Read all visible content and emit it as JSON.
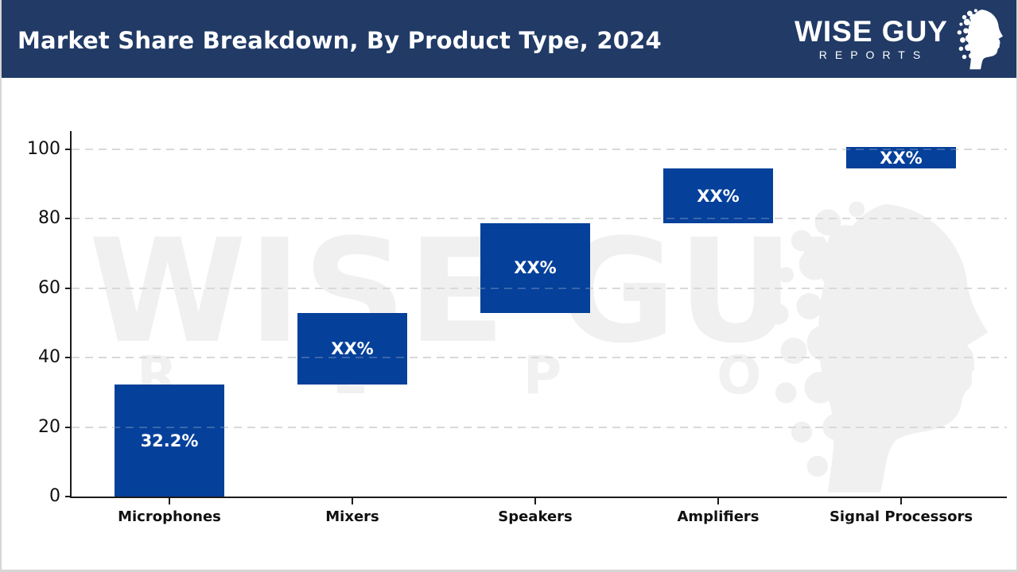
{
  "header": {
    "title": "Market Share Breakdown, By Product Type, 2024",
    "bg_color": "#213a66",
    "logo": {
      "line1": "WISE GUY",
      "line2": "REPORTS"
    }
  },
  "watermark": {
    "line1": "WISE GUY",
    "line2": "R E P O R T S"
  },
  "chart_data": {
    "type": "bar",
    "subtype": "waterfall",
    "title": "Market Share Breakdown, By Product Type, 2024",
    "xlabel": "",
    "ylabel": "",
    "categories": [
      "Microphones",
      "Mixers",
      "Speakers",
      "Amplifiers",
      "Signal Processors"
    ],
    "segments": [
      {
        "category": "Microphones",
        "start": 0,
        "end": 32.2,
        "label": "32.2%"
      },
      {
        "category": "Mixers",
        "start": 32.2,
        "end": 52.9,
        "label": "XX%"
      },
      {
        "category": "Speakers",
        "start": 52.9,
        "end": 78.6,
        "label": "XX%"
      },
      {
        "category": "Amplifiers",
        "start": 78.6,
        "end": 94.3,
        "label": "XX%"
      },
      {
        "category": "Signal Processors",
        "start": 94.3,
        "end": 100.5,
        "label": "XX%"
      }
    ],
    "y_ticks": [
      0,
      20,
      40,
      60,
      80,
      100
    ],
    "ylim": [
      0,
      105
    ],
    "grid": true,
    "grid_style": "dashed",
    "legend": "none",
    "bar_color": "#05409a",
    "bar_label_color": "#ffffff"
  }
}
